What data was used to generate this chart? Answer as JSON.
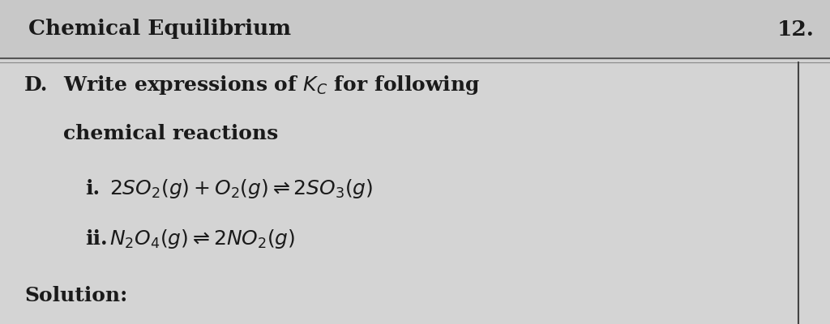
{
  "bg_color": "#d4d4d4",
  "header_bg": "#c8c8c8",
  "body_bg": "#e0e0e0",
  "header_text": "Chemical Equilibrium",
  "header_number": "12.",
  "line_color": "#333333",
  "text_color": "#1a1a1a",
  "right_border_color": "#444444",
  "header_fontsize": 19,
  "body_fontsize": 18,
  "section_label": "D.",
  "line1": "Write expressions of $K_C$ for following",
  "line2": "chemical reactions",
  "ri_label": "i.",
  "ri_text": "$2SO_2(g) + O_2(g) \\rightleftharpoons 2SO_3(g)$",
  "rii_label": "ii.",
  "rii_text": "$N_2O_4(g) \\rightleftharpoons 2NO_2(g)$",
  "solution_text": "Solution:"
}
